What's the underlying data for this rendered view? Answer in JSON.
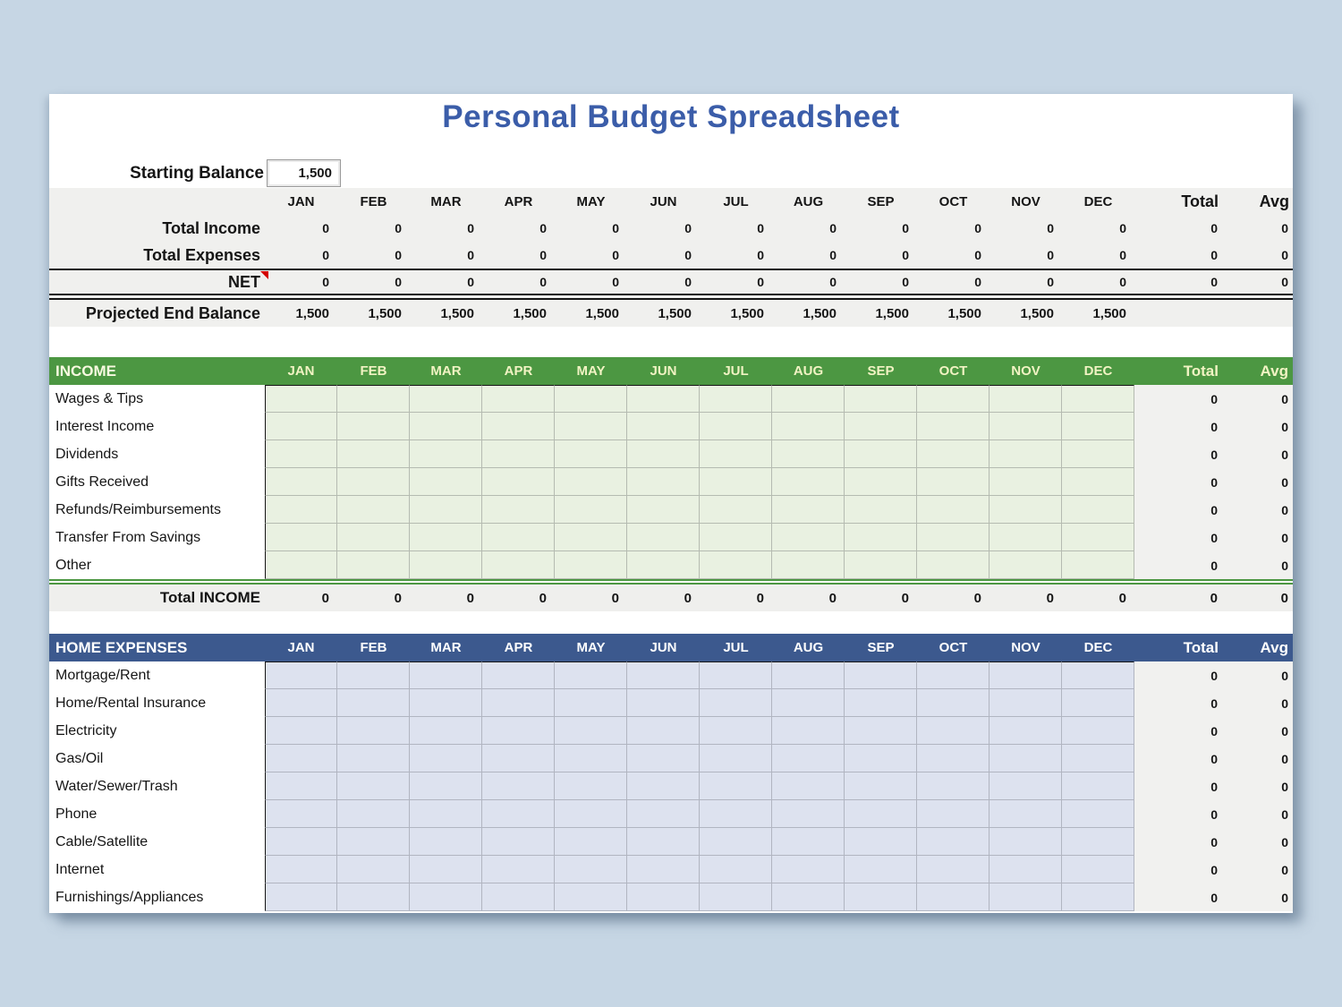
{
  "title": "Personal Budget Spreadsheet",
  "months": [
    "JAN",
    "FEB",
    "MAR",
    "APR",
    "MAY",
    "JUN",
    "JUL",
    "AUG",
    "SEP",
    "OCT",
    "NOV",
    "DEC"
  ],
  "columns": {
    "total_label": "Total",
    "avg_label": "Avg"
  },
  "starting_balance": {
    "label": "Starting Balance",
    "value": "1,500"
  },
  "summary": {
    "rows": [
      {
        "label": "Total Income",
        "values": [
          "0",
          "0",
          "0",
          "0",
          "0",
          "0",
          "0",
          "0",
          "0",
          "0",
          "0",
          "0"
        ],
        "total": "0",
        "avg": "0",
        "comment_marker": false
      },
      {
        "label": "Total Expenses",
        "values": [
          "0",
          "0",
          "0",
          "0",
          "0",
          "0",
          "0",
          "0",
          "0",
          "0",
          "0",
          "0"
        ],
        "total": "0",
        "avg": "0",
        "comment_marker": false
      },
      {
        "label": "NET",
        "values": [
          "0",
          "0",
          "0",
          "0",
          "0",
          "0",
          "0",
          "0",
          "0",
          "0",
          "0",
          "0"
        ],
        "total": "0",
        "avg": "0",
        "comment_marker": true
      }
    ],
    "projected": {
      "label": "Projected End Balance",
      "values": [
        "1,500",
        "1,500",
        "1,500",
        "1,500",
        "1,500",
        "1,500",
        "1,500",
        "1,500",
        "1,500",
        "1,500",
        "1,500",
        "1,500"
      ],
      "total": "",
      "avg": ""
    }
  },
  "income": {
    "title": "INCOME",
    "rows": [
      {
        "label": "Wages & Tips",
        "total": "0",
        "avg": "0"
      },
      {
        "label": "Interest Income",
        "total": "0",
        "avg": "0"
      },
      {
        "label": "Dividends",
        "total": "0",
        "avg": "0"
      },
      {
        "label": "Gifts Received",
        "total": "0",
        "avg": "0"
      },
      {
        "label": "Refunds/Reimbursements",
        "total": "0",
        "avg": "0"
      },
      {
        "label": "Transfer From Savings",
        "total": "0",
        "avg": "0"
      },
      {
        "label": "Other",
        "total": "0",
        "avg": "0"
      }
    ],
    "total_row": {
      "label": "Total INCOME",
      "values": [
        "0",
        "0",
        "0",
        "0",
        "0",
        "0",
        "0",
        "0",
        "0",
        "0",
        "0",
        "0"
      ],
      "total": "0",
      "avg": "0"
    }
  },
  "home_expenses": {
    "title": "HOME EXPENSES",
    "rows": [
      {
        "label": "Mortgage/Rent",
        "total": "0",
        "avg": "0"
      },
      {
        "label": "Home/Rental Insurance",
        "total": "0",
        "avg": "0"
      },
      {
        "label": "Electricity",
        "total": "0",
        "avg": "0"
      },
      {
        "label": "Gas/Oil",
        "total": "0",
        "avg": "0"
      },
      {
        "label": "Water/Sewer/Trash",
        "total": "0",
        "avg": "0"
      },
      {
        "label": "Phone",
        "total": "0",
        "avg": "0"
      },
      {
        "label": "Cable/Satellite",
        "total": "0",
        "avg": "0"
      },
      {
        "label": "Internet",
        "total": "0",
        "avg": "0"
      },
      {
        "label": "Furnishings/Appliances",
        "total": "0",
        "avg": "0"
      }
    ]
  },
  "colors": {
    "background": "#c6d6e4",
    "title_blue": "#3b5da9",
    "income_green": "#4c9742",
    "expenses_blue": "#3c598e",
    "comment_marker_red": "#d40000"
  }
}
